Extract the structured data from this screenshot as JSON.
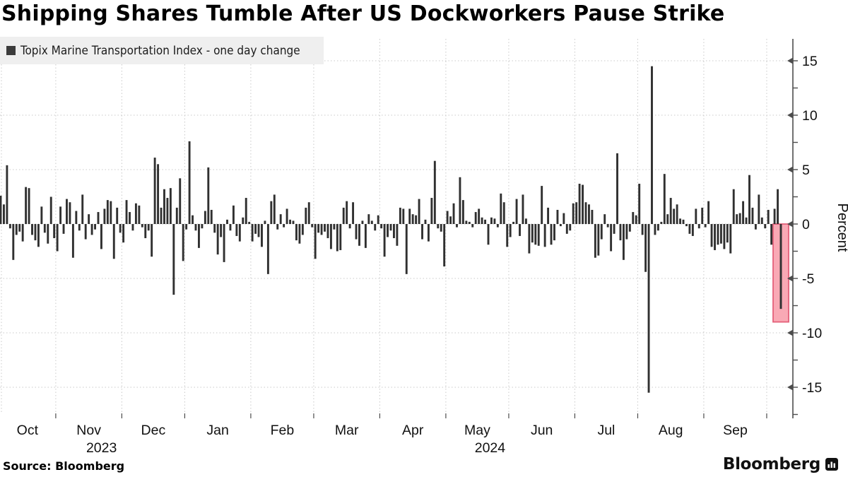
{
  "title": "Shipping Shares Tumble After US Dockworkers Pause Strike",
  "legend": {
    "label": "Topix Marine Transportation Index - one day change",
    "swatch_color": "#3b3b3b",
    "background": "#efefef"
  },
  "source": "Source: Bloomberg",
  "branding": "Bloomberg",
  "chart_data": {
    "type": "bar",
    "title": "Topix Marine Transportation Index - one day change",
    "xlabel": "",
    "ylabel": "Percent",
    "ylim": [
      -17.4,
      17
    ],
    "yticks": [
      15,
      10,
      5,
      0,
      -5,
      -10,
      -15
    ],
    "ytick_minor_step": 2.5,
    "grid": true,
    "legend_position": "top-left",
    "bar_color": "#303030",
    "grid_color": "#c9c9c9",
    "axis_color": "#4d4d4d",
    "highlight": {
      "applies_to": "last-bar",
      "box_low_value": -9.0,
      "box_high_value": 0,
      "fill": "#f9a9b5",
      "stroke": "#e4607a",
      "note": "final bar (early Oct 2024) outlined with pink box"
    },
    "months": [
      {
        "label": "Oct",
        "bars": 18
      },
      {
        "label": "Nov",
        "bars": 21
      },
      {
        "label": "Dec",
        "bars": 20
      },
      {
        "label": "Jan",
        "bars": 21
      },
      {
        "label": "Feb",
        "bars": 20
      },
      {
        "label": "Mar",
        "bars": 21
      },
      {
        "label": "Apr",
        "bars": 21
      },
      {
        "label": "May",
        "bars": 20
      },
      {
        "label": "Jun",
        "bars": 21
      },
      {
        "label": "Jul",
        "bars": 20
      },
      {
        "label": "Aug",
        "bars": 21
      },
      {
        "label": "Sep",
        "bars": 20
      },
      {
        "label": "",
        "bars": 5
      }
    ],
    "years": [
      {
        "label": "2023",
        "month_index": 1
      },
      {
        "label": "2024",
        "month_index": 7
      }
    ],
    "values": [
      2.6,
      1.8,
      5.4,
      -0.4,
      -3.3,
      -1.0,
      -0.7,
      -1.6,
      3.4,
      3.3,
      -1.0,
      -1.5,
      -2.1,
      1.6,
      -0.8,
      -1.8,
      2.5,
      -1.3,
      -2.5,
      1.6,
      -0.9,
      2.3,
      2.0,
      -3.1,
      1.2,
      -0.6,
      2.7,
      -1.4,
      0.9,
      -1.0,
      -0.5,
      1.1,
      -2.3,
      1.4,
      2.2,
      2.1,
      -3.2,
      1.5,
      -0.8,
      -1.7,
      2.2,
      1.1,
      -0.6,
      1.9,
      1.7,
      -0.3,
      -1.3,
      -0.6,
      -3.0,
      6.1,
      5.5,
      1.5,
      3.2,
      2.4,
      3.3,
      -6.5,
      1.5,
      4.2,
      -3.4,
      -0.5,
      7.6,
      0.8,
      -0.6,
      -2.2,
      -0.4,
      1.2,
      5.2,
      1.3,
      -0.8,
      -2.8,
      -1.2,
      -3.5,
      0.4,
      -0.6,
      1.7,
      -1.1,
      -1.6,
      0.6,
      2.4,
      0.2,
      -1.6,
      -0.9,
      -1.2,
      -2.1,
      0.3,
      -4.6,
      2.1,
      2.7,
      -0.5,
      0.9,
      -0.3,
      1.4,
      0.4,
      0.3,
      -1.5,
      -1.8,
      -1.0,
      1.5,
      2.0,
      -0.3,
      -3.2,
      -0.8,
      -1.0,
      -0.7,
      -1.3,
      -2.3,
      -0.5,
      -2.5,
      -2.4,
      1.5,
      2.1,
      -0.4,
      2.0,
      -1.4,
      -2.0,
      0.3,
      -2.2,
      0.9,
      0.3,
      -0.6,
      0.8,
      -0.4,
      -3.0,
      -1.2,
      -0.6,
      -1.3,
      -2.0,
      1.5,
      1.4,
      -4.6,
      1.4,
      0.9,
      0.8,
      2.3,
      -1.4,
      0.4,
      -1.6,
      2.4,
      5.8,
      -0.4,
      -0.7,
      -3.9,
      1.2,
      0.7,
      1.9,
      -0.3,
      4.3,
      2.2,
      0.3,
      0.2,
      -0.3,
      1.1,
      1.4,
      0.6,
      0.4,
      -1.9,
      0.6,
      0.5,
      -0.3,
      2.8,
      2.0,
      -2.1,
      -1.2,
      0.2,
      2.3,
      -1.1,
      2.7,
      0.5,
      -2.7,
      -1.7,
      -1.9,
      -2.0,
      3.5,
      -2.1,
      1.5,
      -1.9,
      -1.5,
      1.3,
      -0.2,
      1.0,
      -0.9,
      -0.6,
      1.9,
      2.0,
      3.7,
      3.6,
      2.0,
      1.8,
      1.3,
      -3.1,
      -2.9,
      -1.4,
      0.9,
      -0.3,
      -2.5,
      -0.9,
      6.5,
      -1.5,
      -3.3,
      -1.4,
      -0.7,
      1.1,
      0.8,
      3.7,
      -1.0,
      -4.4,
      -15.5,
      14.5,
      -1.0,
      -0.6,
      0.2,
      4.6,
      0.9,
      2.4,
      1.4,
      1.8,
      0.5,
      0.4,
      -0.2,
      -0.9,
      -1.1,
      1.4,
      -0.4,
      1.5,
      -0.3,
      2.1,
      -2.1,
      -2.4,
      -1.9,
      -1.8,
      -2.3,
      -1.7,
      -2.7,
      3.2,
      0.9,
      1.0,
      2.1,
      0.6,
      4.5,
      1.5,
      -0.5,
      2.7,
      0.6,
      -0.4,
      1.3,
      -1.9,
      1.4,
      3.2,
      -7.8
    ]
  }
}
